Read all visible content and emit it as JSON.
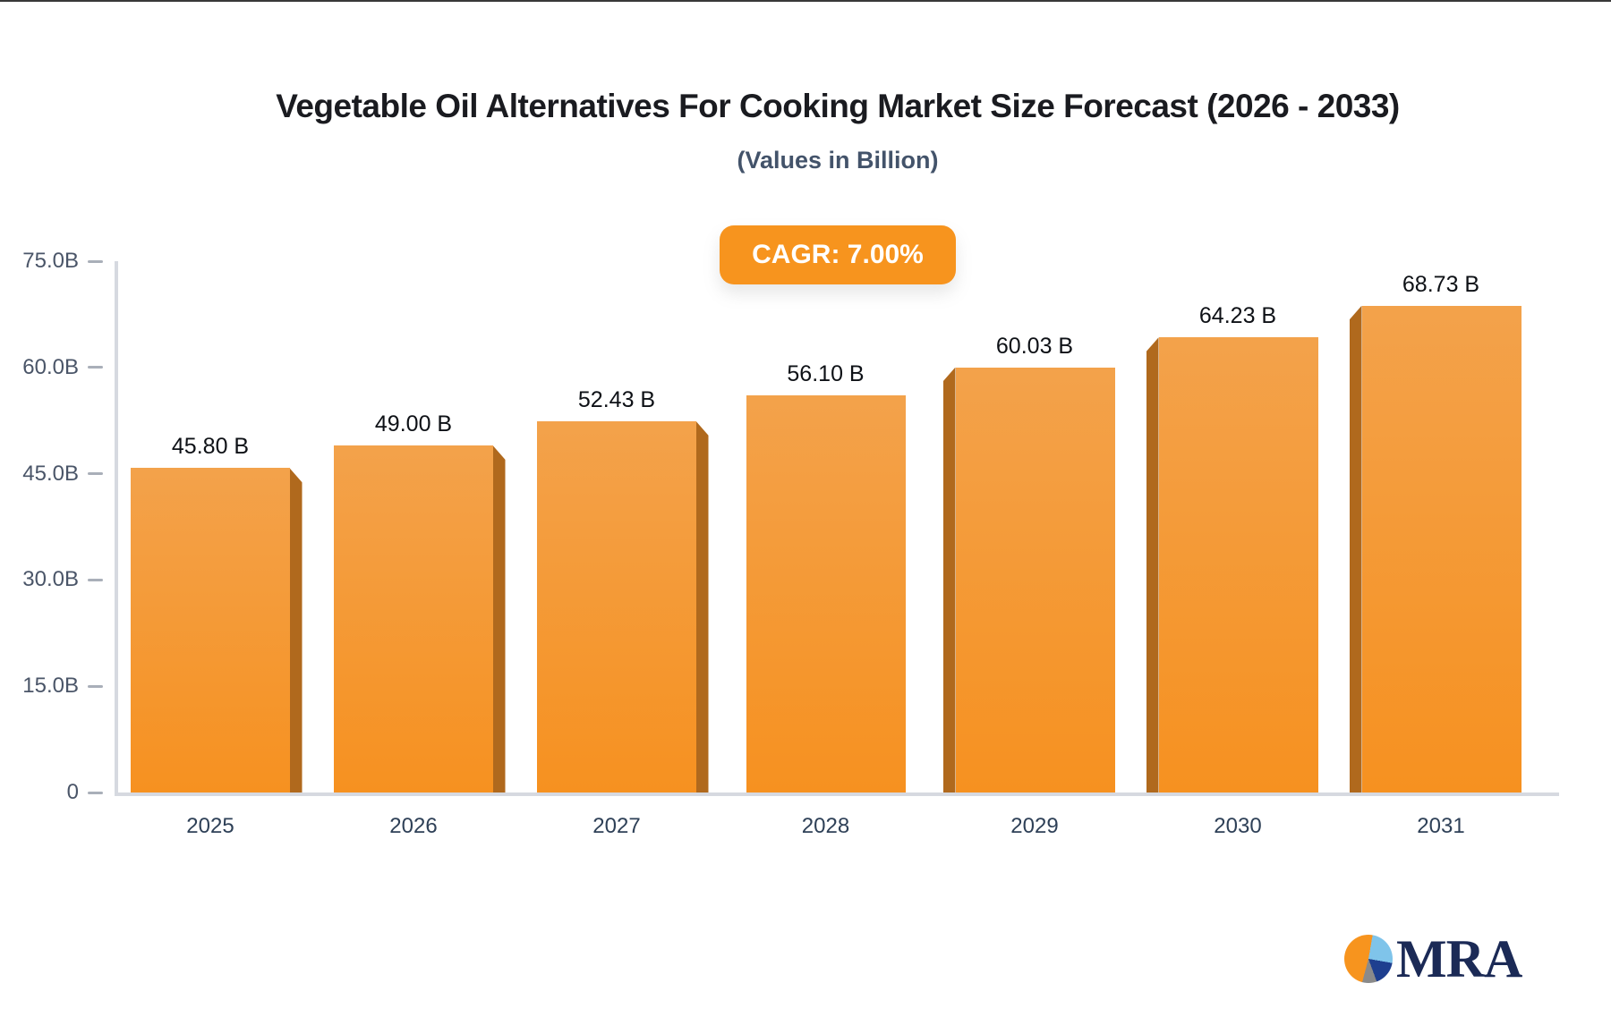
{
  "page": {
    "title": "Vegetable Oil Alternatives For Cooking Market Size Forecast (2026 - 2033)",
    "subtitle": "(Values in Billion)",
    "badge_label": "CAGR: 7.00%"
  },
  "chart_data": {
    "type": "bar",
    "title": "Vegetable Oil Alternatives For Cooking Market Size Forecast (2026 - 2033)",
    "subtitle": "(Values in Billion)",
    "annotation": "CAGR: 7.00%",
    "categories": [
      "2025",
      "2026",
      "2027",
      "2028",
      "2029",
      "2030",
      "2031"
    ],
    "values": [
      45.8,
      49.0,
      52.43,
      56.1,
      60.03,
      64.23,
      68.73
    ],
    "value_labels": [
      "45.80 B",
      "49.00 B",
      "52.43 B",
      "56.10 B",
      "60.03 B",
      "64.23 B",
      "68.73 B"
    ],
    "xlabel": "",
    "ylabel": "",
    "ylim": [
      0,
      75
    ],
    "yticks": [
      {
        "value": 0,
        "label": "0"
      },
      {
        "value": 15,
        "label": "15.0B"
      },
      {
        "value": 30,
        "label": "30.0B"
      },
      {
        "value": 45,
        "label": "45.0B"
      },
      {
        "value": 60,
        "label": "60.0B"
      },
      {
        "value": 75,
        "label": "75.0B"
      }
    ],
    "grid": false,
    "legend": "none",
    "bar_style": "3d-center-perspective",
    "colors": {
      "bar_top": "#F3A24B",
      "bar_bottom": "#F69120",
      "bar_side": "#B0691D",
      "axis_line": "#D6D9E0",
      "tick_mark": "#A9AFB9",
      "ytick_label": "#4A5568",
      "xtick_label": "#2E4057",
      "value_label": "#0E1116",
      "badge_bg": "#F7941E",
      "badge_text": "#FFFFFF",
      "title": "#1A1B20",
      "subtitle": "#43536A"
    }
  },
  "logo": {
    "text": "MRA",
    "text_color": "#1B2A56",
    "pie_orange": "#F7941E",
    "pie_lightblue": "#7FC4EA",
    "pie_navy": "#1E3F8F",
    "pie_gray": "#8A8A8A"
  }
}
